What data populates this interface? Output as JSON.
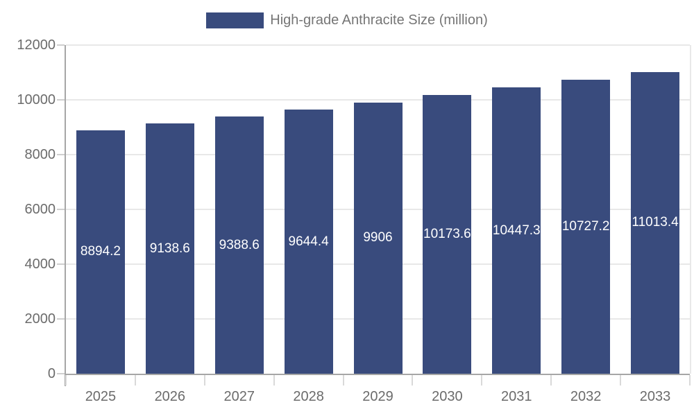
{
  "legend": {
    "label": "High-grade Anthracite Size (million)"
  },
  "chart_data": {
    "type": "bar",
    "title": "High-grade Anthracite Size (million)",
    "categories": [
      "2025",
      "2026",
      "2027",
      "2028",
      "2029",
      "2030",
      "2031",
      "2032",
      "2033"
    ],
    "values": [
      8894.2,
      9138.6,
      9388.6,
      9644.4,
      9906,
      10173.6,
      10447.3,
      10727.2,
      11013.4
    ],
    "bar_labels": [
      "8894.2",
      "9138.6",
      "9388.6",
      "9644.4",
      "9906",
      "10173.6",
      "10447.3",
      "10727.2",
      "11013.4"
    ],
    "xlabel": "",
    "ylabel": "",
    "ylim": [
      0,
      12000
    ],
    "yticks": [
      0,
      2000,
      4000,
      6000,
      8000,
      10000,
      12000
    ],
    "ytick_labels": [
      "0",
      "2000",
      "4000",
      "6000",
      "8000",
      "10000",
      "12000"
    ],
    "grid": true,
    "legend_position": "top",
    "bar_label_position": "inside-middle",
    "colors": {
      "bar": "#394B7D",
      "bar_label_text": "#FFFFFF",
      "axis_text": "#6B6B6B",
      "legend_text": "#757575",
      "grid_line": "#E8E8E8",
      "axis_line": "#A6A6A6",
      "tick_line": "#D9D9D9",
      "background": "#FFFFFF"
    }
  }
}
